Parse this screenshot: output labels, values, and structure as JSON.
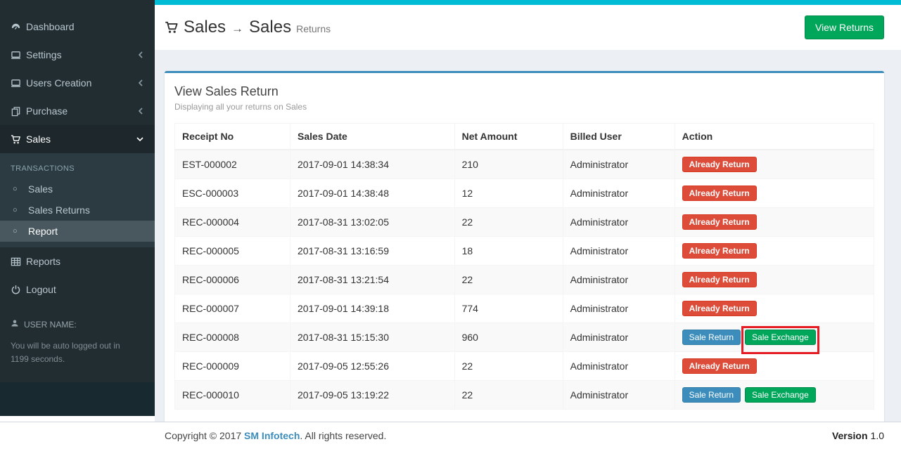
{
  "icons": {
    "arrow_right": "→",
    "circle_o": "○"
  },
  "sidebar": {
    "items": [
      {
        "label": "Dashboard"
      },
      {
        "label": "Settings"
      },
      {
        "label": "Users Creation"
      },
      {
        "label": "Purchase"
      },
      {
        "label": "Sales"
      }
    ],
    "transactions_header": "TRANSACTIONS",
    "submenu": [
      {
        "label": "Sales"
      },
      {
        "label": "Sales Returns"
      },
      {
        "label": "Report"
      }
    ],
    "reports_label": "Reports",
    "logout_label": "Logout",
    "user_label": "USER NAME:",
    "logout_notice": "You will be auto logged out in 1199 seconds."
  },
  "header": {
    "title_primary": "Sales",
    "title_secondary": "Sales",
    "title_tertiary": "Returns",
    "view_returns_button": "View Returns"
  },
  "panel": {
    "title": "View Sales Return",
    "subtitle": "Displaying all your returns on Sales"
  },
  "table": {
    "columns": [
      "Receipt No",
      "Sales Date",
      "Net Amount",
      "Billed User",
      "Action"
    ],
    "rows": [
      {
        "receipt": "EST-000002",
        "date": "2017-09-01 14:38:34",
        "amount": "210",
        "user": "Administrator",
        "actions": [
          {
            "kind": "already",
            "label": "Already Return"
          }
        ]
      },
      {
        "receipt": "ESC-000003",
        "date": "2017-09-01 14:38:48",
        "amount": "12",
        "user": "Administrator",
        "actions": [
          {
            "kind": "already",
            "label": "Already Return"
          }
        ]
      },
      {
        "receipt": "REC-000004",
        "date": "2017-08-31 13:02:05",
        "amount": "22",
        "user": "Administrator",
        "actions": [
          {
            "kind": "already",
            "label": "Already Return"
          }
        ]
      },
      {
        "receipt": "REC-000005",
        "date": "2017-08-31 13:16:59",
        "amount": "18",
        "user": "Administrator",
        "actions": [
          {
            "kind": "already",
            "label": "Already Return"
          }
        ]
      },
      {
        "receipt": "REC-000006",
        "date": "2017-08-31 13:21:54",
        "amount": "22",
        "user": "Administrator",
        "actions": [
          {
            "kind": "already",
            "label": "Already Return"
          }
        ]
      },
      {
        "receipt": "REC-000007",
        "date": "2017-09-01 14:39:18",
        "amount": "774",
        "user": "Administrator",
        "actions": [
          {
            "kind": "already",
            "label": "Already Return"
          }
        ]
      },
      {
        "receipt": "REC-000008",
        "date": "2017-08-31 15:15:30",
        "amount": "960",
        "user": "Administrator",
        "actions": [
          {
            "kind": "return",
            "label": "Sale Return"
          },
          {
            "kind": "exchange",
            "label": "Sale Exchange",
            "highlighted": true
          }
        ]
      },
      {
        "receipt": "REC-000009",
        "date": "2017-09-05 12:55:26",
        "amount": "22",
        "user": "Administrator",
        "actions": [
          {
            "kind": "already",
            "label": "Already Return"
          }
        ]
      },
      {
        "receipt": "REC-000010",
        "date": "2017-09-05 13:19:22",
        "amount": "22",
        "user": "Administrator",
        "actions": [
          {
            "kind": "return",
            "label": "Sale Return"
          },
          {
            "kind": "exchange",
            "label": "Sale Exchange"
          }
        ]
      }
    ]
  },
  "footer": {
    "copyright_prefix": "Copyright © 2017 ",
    "company": "SM Infotech",
    "copyright_suffix": ". All rights reserved.",
    "version_label": "Version",
    "version_value": "1.0"
  },
  "colors": {
    "topstrip_teal": "#00bcd4",
    "panel_border_blue": "#3c8dbc",
    "success_green": "#00a65a",
    "danger_red": "#dd4b39",
    "primary_blue": "#3c8dbc",
    "annotation_red": "#e51c23",
    "sidebar_dark": "#222d32",
    "content_gray": "#ecf0f5"
  }
}
